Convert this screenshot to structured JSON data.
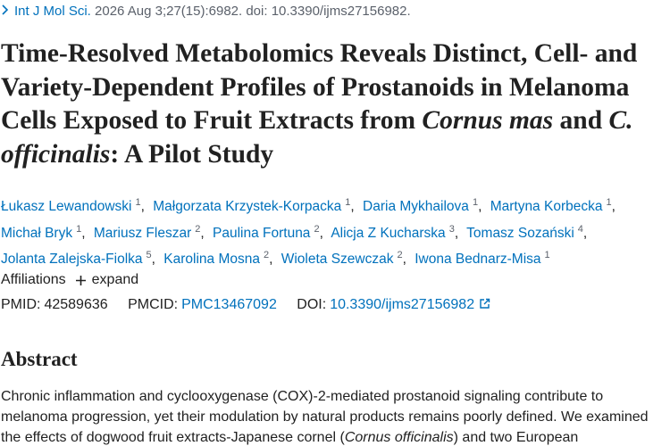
{
  "citation": {
    "journal": "Int J Mol Sci.",
    "details": "2026 Aug 3;27(15):6982. doi: 10.3390/ijms27156982."
  },
  "title": [
    "Time-Resolved Metabolomics Reveals Distinct, Cell- and Variety-Dependent Profiles of Prostanoids in Melanoma Cells Exposed to Fruit Extracts from ",
    "Cornus mas",
    " and ",
    "C. officinalis",
    ": A Pilot Study"
  ],
  "authors": [
    {
      "name": "Łukasz Lewandowski",
      "aff": "1"
    },
    {
      "name": "Małgorzata Krzystek-Korpacka",
      "aff": "1"
    },
    {
      "name": "Daria Mykhailova",
      "aff": "1"
    },
    {
      "name": "Martyna Korbecka",
      "aff": "1"
    },
    {
      "name": "Michał Bryk",
      "aff": "1"
    },
    {
      "name": "Mariusz Fleszar",
      "aff": "2"
    },
    {
      "name": "Paulina Fortuna",
      "aff": "2"
    },
    {
      "name": "Alicja Z Kucharska",
      "aff": "3"
    },
    {
      "name": "Tomasz Sozański",
      "aff": "4"
    },
    {
      "name": "Jolanta Zalejska-Fiolka",
      "aff": "5"
    },
    {
      "name": "Karolina Mosna",
      "aff": "2"
    },
    {
      "name": "Wioleta Szewczak",
      "aff": "2"
    },
    {
      "name": "Iwona Bednarz-Misa",
      "aff": "1"
    }
  ],
  "affiliations": {
    "label": "Affiliations",
    "action": "expand"
  },
  "ids": {
    "pmid_label": "PMID:",
    "pmid": "42589636",
    "pmcid_label": "PMCID:",
    "pmcid": "PMC13467092",
    "doi_label": "DOI:",
    "doi": "10.3390/ijms27156982"
  },
  "abstract": {
    "heading": "Abstract",
    "text": [
      "Chronic inflammation and cyclooxygenase (COX)-2-mediated prostanoid signaling contribute to melanoma progression, yet their modulation by natural products remains poorly defined. We examined the effects of dogwood fruit extracts-Japanese cornel (",
      "Cornus officinalis",
      ") and two European"
    ]
  }
}
